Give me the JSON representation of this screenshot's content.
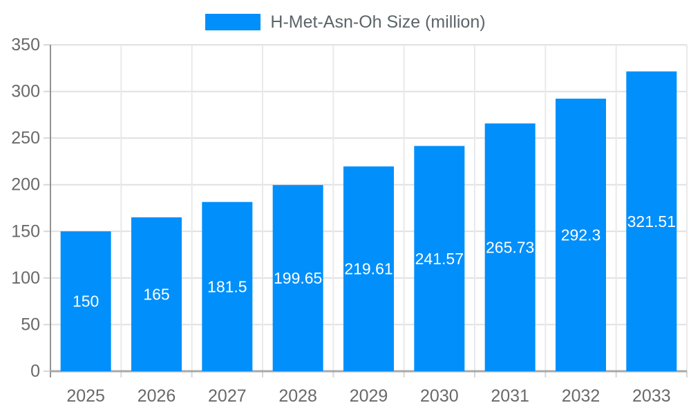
{
  "chart_data": {
    "type": "bar",
    "title": "H-Met-Asn-Oh Size (million)",
    "categories": [
      "2025",
      "2026",
      "2027",
      "2028",
      "2029",
      "2030",
      "2031",
      "2032",
      "2033"
    ],
    "series": [
      {
        "name": "H-Met-Asn-Oh Size (million)",
        "values": [
          150,
          165,
          181.5,
          199.65,
          219.61,
          241.57,
          265.73,
          292.3,
          321.51
        ],
        "labels": [
          "150",
          "165",
          "181.5",
          "199.65",
          "219.61",
          "241.57",
          "265.73",
          "292.3",
          "321.51"
        ]
      }
    ],
    "xlabel": "",
    "ylabel": "",
    "ylim": [
      0,
      350
    ],
    "ytick_step": 50,
    "ytick_labels": [
      "0",
      "50",
      "100",
      "150",
      "200",
      "250",
      "300",
      "350"
    ],
    "grid": true,
    "legend_position": "top",
    "colors": {
      "bar": "#008FFB",
      "data_label": "#ffffff",
      "axis_label": "#696969",
      "legend_text": "#5b6468",
      "grid_h": "#e0e0e0",
      "grid_v": "#e9e9e9",
      "y_axis_line": "#919191",
      "x_axis_line": "#a8a8a8",
      "tick": "#d6d6d6",
      "background": "#ffffff"
    }
  }
}
